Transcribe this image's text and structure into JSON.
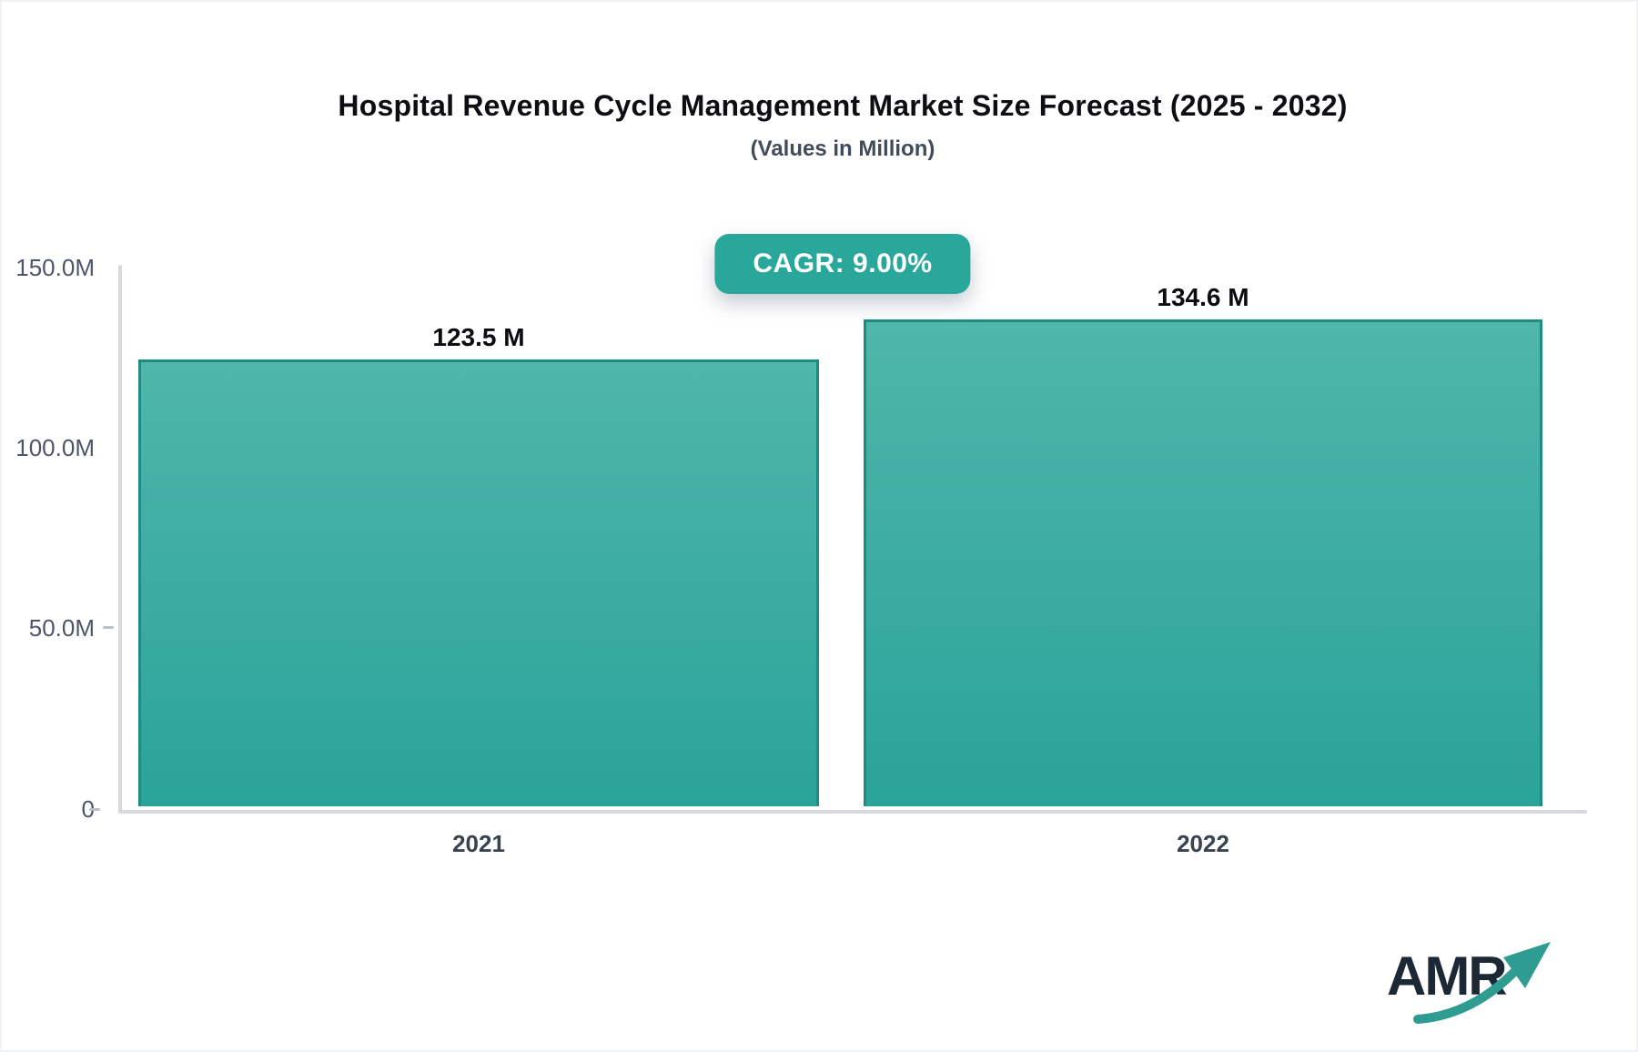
{
  "header": {
    "title": "Hospital Revenue Cycle Management Market Size Forecast (2025 - 2032)",
    "subtitle": "(Values in Million)"
  },
  "badge": {
    "label": "CAGR: 9.00%",
    "bg_color": "#2aa79b",
    "text_color": "#ffffff"
  },
  "watermark": {
    "text": "AMR",
    "icon": "growth-arrow-icon",
    "text_color": "#1c2834",
    "arrow_color": "#2f9c91"
  },
  "chart_data": {
    "type": "bar",
    "title": "Hospital Revenue Cycle Management Market Size Forecast (2025 - 2032)",
    "subtitle": "(Values in Million)",
    "categories": [
      "2021",
      "2022"
    ],
    "values": [
      123.5,
      134.6
    ],
    "value_labels": [
      "123.5 M",
      "134.6 M"
    ],
    "unit": "Million",
    "cagr": "9.00%",
    "xlabel": "",
    "ylabel": "",
    "ylim": [
      0,
      150
    ],
    "y_ticks": [
      "0",
      "50.0M",
      "100.0M",
      "150.0M"
    ],
    "grid": false,
    "legend": false,
    "colors": {
      "bar_gradient_top": "#4fb6aa",
      "bar_gradient_bottom": "#2aa399",
      "bar_border": "#1e8c82",
      "axis_line": "#d6dade",
      "tick_label": "#4d5668",
      "category_label": "#39424f",
      "value_label": "#0a0c10"
    }
  }
}
